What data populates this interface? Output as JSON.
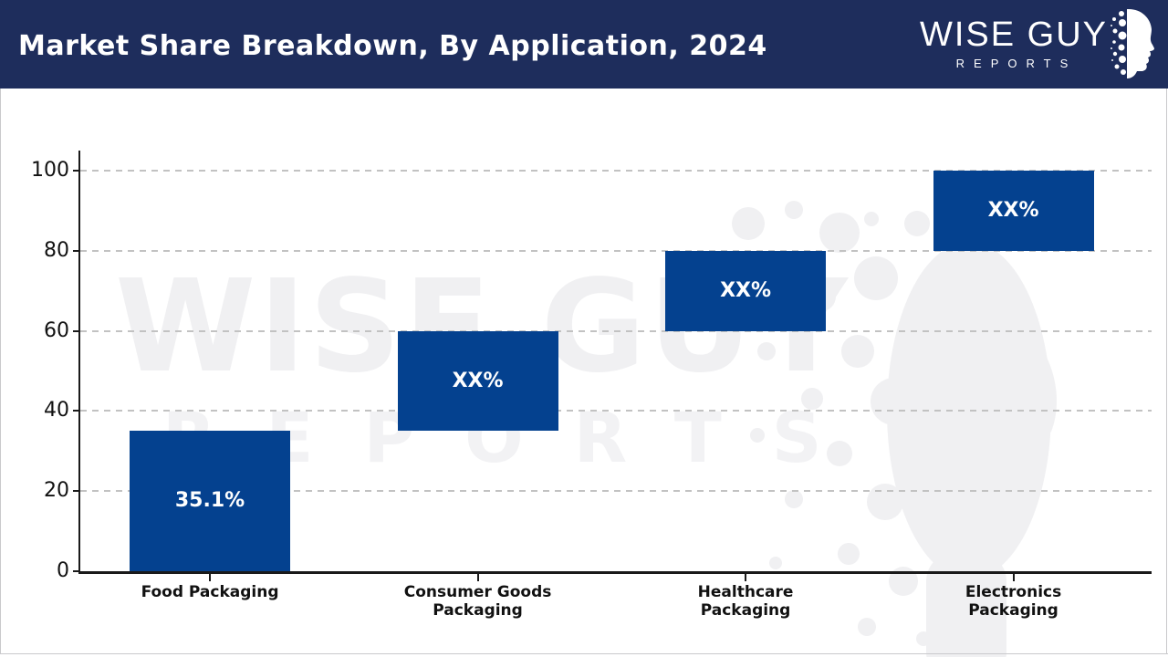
{
  "header": {
    "title": "Market Share Breakdown, By Application, 2024",
    "logo": {
      "line1": "WISE GUY",
      "line2": "REPORTS"
    }
  },
  "watermark": {
    "line1": "WISE GUY",
    "line2": "REPORTS"
  },
  "chart_data": {
    "type": "bar",
    "subtype": "floating-waterfall",
    "title": "Market Share Breakdown, By Application, 2024",
    "categories": [
      "Food Packaging",
      "Consumer Goods\nPackaging",
      "Healthcare\nPackaging",
      "Electronics\nPackaging"
    ],
    "segments": [
      {
        "category": "Food Packaging",
        "start": 0,
        "end": 35.1,
        "label": "35.1%"
      },
      {
        "category": "Consumer Goods Packaging",
        "start": 35.1,
        "end": 60,
        "label": "XX%"
      },
      {
        "category": "Healthcare Packaging",
        "start": 60,
        "end": 80,
        "label": "XX%"
      },
      {
        "category": "Electronics Packaging",
        "start": 80,
        "end": 100,
        "label": "XX%"
      }
    ],
    "yticks": [
      0,
      20,
      40,
      60,
      80,
      100
    ],
    "ylim": [
      0,
      105
    ],
    "xlabel": "",
    "ylabel": "",
    "grid": "horizontal-dashed",
    "legend": "none",
    "colors": {
      "bar": "#04418f",
      "bar_label": "#ffffff",
      "grid": "#c2c2c2",
      "axis": "#1a1a1a",
      "tick_label": "#111111",
      "header_bg": "#1e2d5c",
      "title_text": "#ffffff",
      "watermark": "#f0f0f2"
    }
  }
}
